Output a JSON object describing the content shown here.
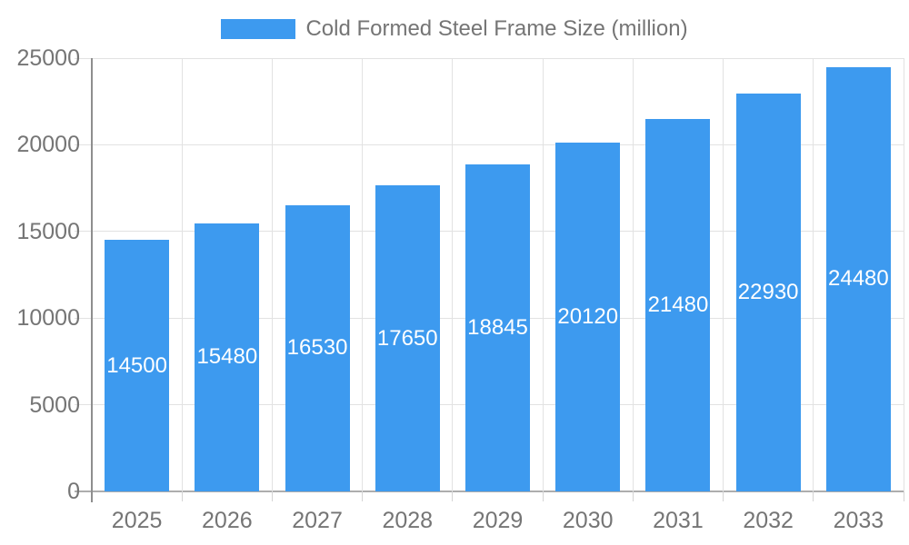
{
  "legend": {
    "label": "Cold Formed Steel Frame Size (million)"
  },
  "colors": {
    "bar": "#3D9AEF",
    "bar_label": "#FFFFFF",
    "axis_text": "#757575",
    "grid_line": "#E2E2E2",
    "baseline": "#ADADAD",
    "axis_line": "#8E8E8E",
    "tick": "#D4D4D4"
  },
  "chart_data": {
    "type": "bar",
    "title": "Cold Formed Steel Frame Size (million)",
    "categories": [
      "2025",
      "2026",
      "2027",
      "2028",
      "2029",
      "2030",
      "2031",
      "2032",
      "2033"
    ],
    "values": [
      14500,
      15480,
      16530,
      17650,
      18845,
      20120,
      21480,
      22930,
      24480
    ],
    "xlabel": "",
    "ylabel": "",
    "ylim": [
      0,
      25000
    ],
    "yticks": [
      0,
      5000,
      10000,
      15000,
      20000,
      25000
    ],
    "grid": true,
    "legend_position": "top",
    "value_labels": "centered-inside-bars"
  }
}
